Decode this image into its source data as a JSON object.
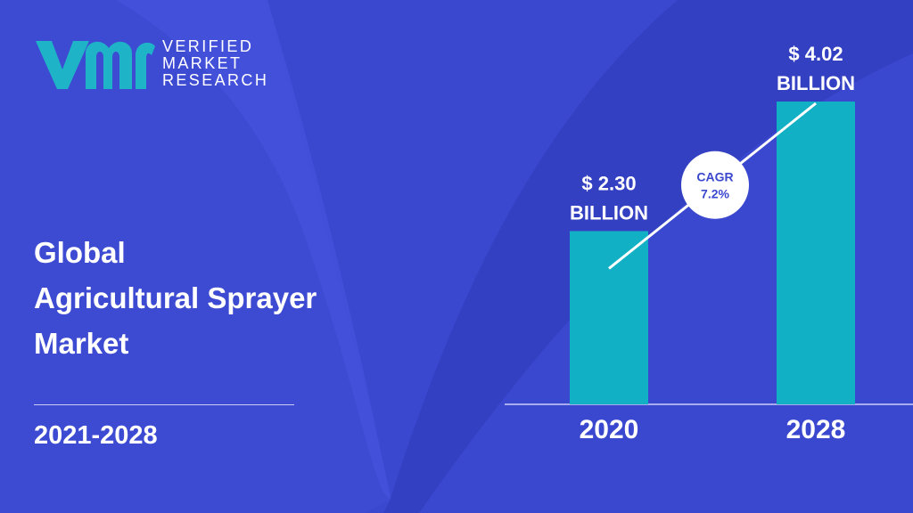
{
  "brand": {
    "line1": "VERIFIED",
    "line2": "MARKET",
    "line3": "RESEARCH"
  },
  "title_lines": [
    "Global",
    "Agricultural Sprayer",
    "Market"
  ],
  "period": "2021-2028",
  "colors": {
    "background": "#3a47cf",
    "bar": "#12b0c4",
    "logo_accent": "#1fb3c8",
    "text": "#ffffff"
  },
  "chart_data": {
    "type": "bar",
    "categories": [
      "2020",
      "2028"
    ],
    "values": [
      2.3,
      4.02
    ],
    "value_labels": [
      [
        "$ 2.30",
        "BILLION"
      ],
      [
        "$ 4.02",
        "BILLION"
      ]
    ],
    "cagr_label": [
      "CAGR",
      "7.2%"
    ],
    "title": "",
    "xlabel": "",
    "ylabel": "",
    "grid": false
  }
}
